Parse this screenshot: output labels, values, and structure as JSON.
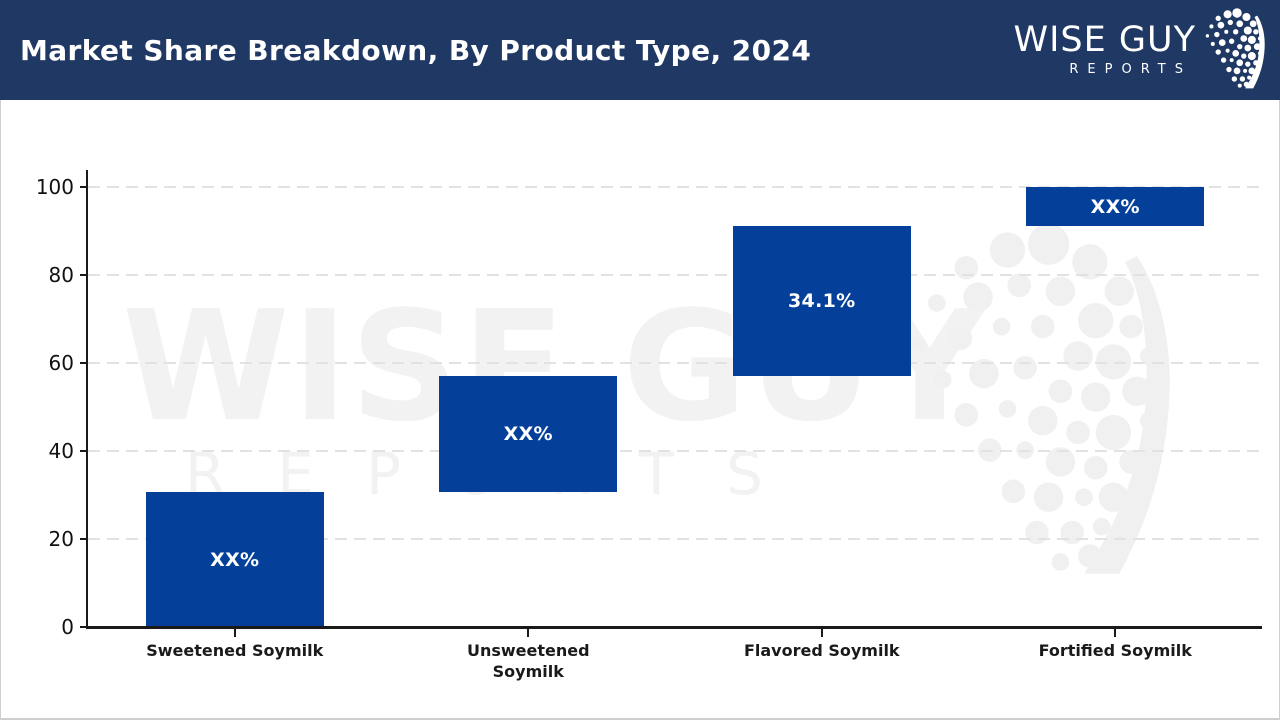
{
  "header": {
    "title": "Market Share Breakdown, By Product Type, 2024",
    "logo": {
      "line1": "WISE GUY",
      "line2": "REPORTS"
    }
  },
  "watermark": {
    "line1": "WISE GUY",
    "line2": "REPORTS"
  },
  "colors": {
    "header_bg": "#1F3864",
    "bar_blue": "#04409A",
    "gridline": "#E2E2E2",
    "axis": "#1A1A1A",
    "watermark_gray": "#F2F2F2"
  },
  "chart_data": {
    "type": "bar",
    "subtype": "waterfall",
    "title": "Market Share Breakdown, By Product Type, 2024",
    "categories": [
      "Sweetened Soymilk",
      "Unsweetened Soymilk",
      "Flavored Soymilk",
      "Fortified Soymilk"
    ],
    "bars": [
      {
        "category": "Sweetened Soymilk",
        "label_lines": [
          "Sweetened Soymilk"
        ],
        "start": 0,
        "end": 30.6,
        "value": 30.6,
        "value_label": "XX%"
      },
      {
        "category": "Unsweetened Soymilk",
        "label_lines": [
          "Unsweetened",
          "Soymilk"
        ],
        "start": 30.6,
        "end": 57.0,
        "value": 26.4,
        "value_label": "XX%"
      },
      {
        "category": "Flavored Soymilk",
        "label_lines": [
          "Flavored Soymilk"
        ],
        "start": 57.0,
        "end": 91.1,
        "value": 34.1,
        "value_label": "34.1%"
      },
      {
        "category": "Fortified Soymilk",
        "label_lines": [
          "Fortified Soymilk"
        ],
        "start": 91.1,
        "end": 100,
        "value": 8.9,
        "value_label": "XX%"
      }
    ],
    "xlabel": "",
    "ylabel": "",
    "ylim": [
      0,
      100
    ],
    "yticks": [
      0,
      20,
      40,
      60,
      80,
      100
    ],
    "grid": true,
    "grid_style": "dashed",
    "legend": "none",
    "bar_color": "#04409A"
  }
}
